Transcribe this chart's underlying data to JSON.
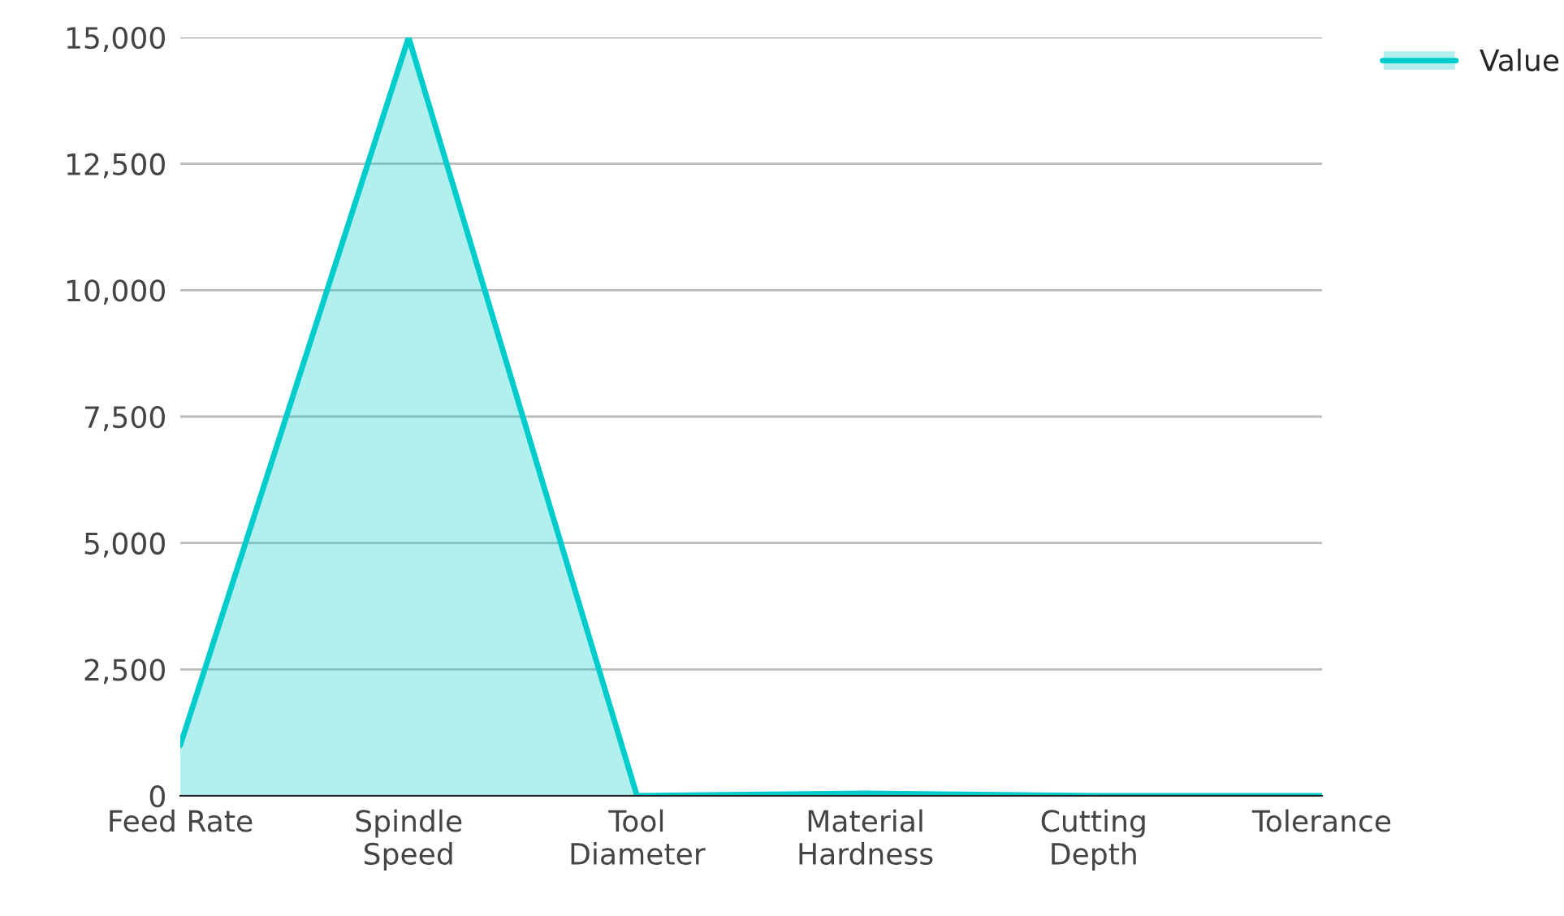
{
  "chart_data": {
    "type": "area",
    "categories": [
      "Feed Rate",
      "Spindle\nSpeed",
      "Tool\nDiameter",
      "Material\nHardness",
      "Cutting\nDepth",
      "Tolerance"
    ],
    "series": [
      {
        "name": "Value",
        "color": "#00cccc",
        "values": [
          1000,
          15000,
          0,
          50,
          0,
          0
        ]
      }
    ],
    "ylim": [
      0,
      15000
    ],
    "yticks": [
      {
        "value": 0,
        "label": "0"
      },
      {
        "value": 2500,
        "label": "2,500"
      },
      {
        "value": 5000,
        "label": "5,000"
      },
      {
        "value": 7500,
        "label": "7,500"
      },
      {
        "value": 10000,
        "label": "10,000"
      },
      {
        "value": 12500,
        "label": "12,500"
      },
      {
        "value": 15000,
        "label": "15,000"
      }
    ],
    "grid": "y",
    "legend": "top right"
  }
}
